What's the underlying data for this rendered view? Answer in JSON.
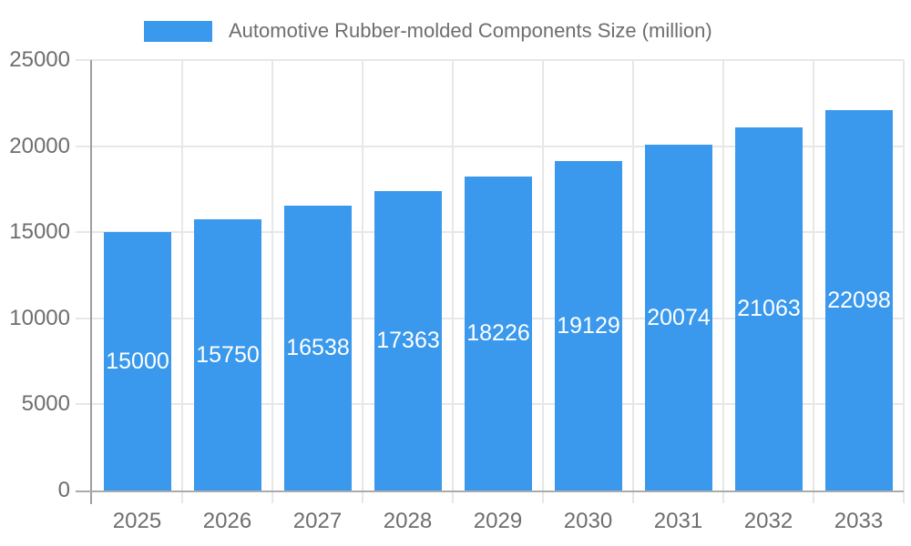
{
  "legend": {
    "label": "Automotive Rubber-molded Components Size (million)",
    "swatch_color": "#3A99EC"
  },
  "chart_data": {
    "type": "bar",
    "title": "Automotive Rubber-molded Components Size (million)",
    "categories": [
      "2025",
      "2026",
      "2027",
      "2028",
      "2029",
      "2030",
      "2031",
      "2032",
      "2033"
    ],
    "values": [
      15000,
      15750,
      16538,
      17363,
      18226,
      19129,
      20074,
      21063,
      22098
    ],
    "xlabel": "",
    "ylabel": "",
    "ylim": [
      0,
      25000
    ],
    "yticks": [
      0,
      5000,
      10000,
      15000,
      20000,
      25000
    ],
    "bar_color": "#3A99EC",
    "value_label_color": "#FFFFFF",
    "axis_text_color": "#6e6e6e",
    "gridline_color": "#e7e7e7",
    "grid": true,
    "legend_position": "top"
  }
}
